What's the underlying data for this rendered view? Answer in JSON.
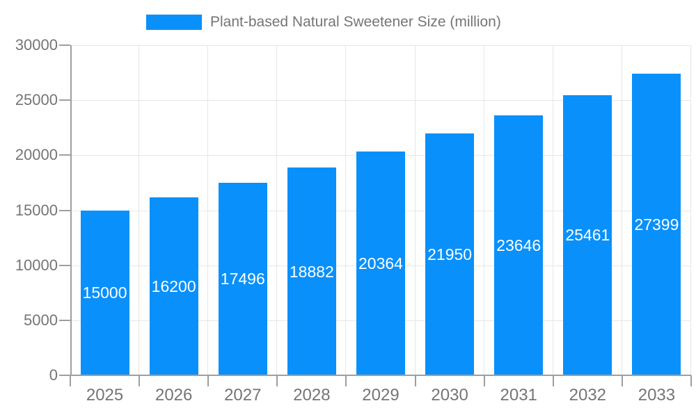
{
  "chart_data": {
    "type": "bar",
    "title": "Plant-based Natural Sweetener Size (million)",
    "legend_entries": [
      "Plant-based Natural Sweetener Size (million)"
    ],
    "legend_position": "top",
    "categories": [
      "2025",
      "2026",
      "2027",
      "2028",
      "2029",
      "2030",
      "2031",
      "2032",
      "2033"
    ],
    "series": [
      {
        "name": "Plant-based Natural Sweetener Size (million)",
        "values": [
          15000,
          16200,
          17496,
          18882,
          20364,
          21950,
          23646,
          25461,
          27399
        ]
      }
    ],
    "data_labels": [
      "15000",
      "16200",
      "17496",
      "18882",
      "20364",
      "21950",
      "23646",
      "25461",
      "27399"
    ],
    "xlabel": "",
    "ylabel": "",
    "ylim": [
      0,
      30000
    ],
    "ytick_step": 5000,
    "ytick_labels": [
      "0",
      "5000",
      "10000",
      "15000",
      "20000",
      "25000",
      "30000"
    ],
    "grid": true,
    "colors": {
      "bar": "#0a90fa",
      "grid": "#e6e6e6",
      "axis": "#9e9e9e",
      "text": "#757575",
      "bar_label_text": "#ffffff",
      "background": "#ffffff"
    }
  }
}
